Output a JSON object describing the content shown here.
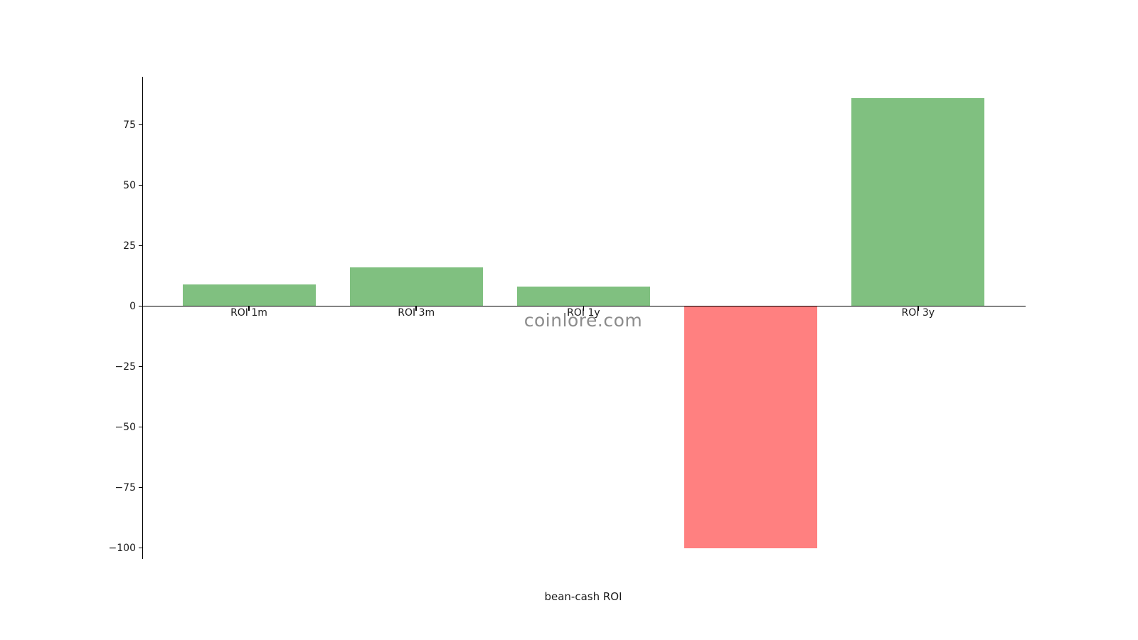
{
  "watermark": {
    "text": "coinlore.com",
    "color": "#8c8c8c"
  },
  "chart_data": {
    "type": "bar",
    "title": "",
    "xlabel": "bean-cash ROI",
    "ylabel": "",
    "categories": [
      "ROI 1m",
      "ROI 3m",
      "ROI 1y",
      "",
      "ROI 3y"
    ],
    "series": [
      {
        "name": "ROI",
        "values": [
          9,
          16,
          8,
          -100,
          86
        ]
      }
    ],
    "bar_colors": [
      "#80c080",
      "#80c080",
      "#80c080",
      "#ff8080",
      "#80c080"
    ],
    "positive_color": "#80c080",
    "negative_color": "#ff8080",
    "ytick_labels": [
      "75",
      "50",
      "25",
      "0",
      "−25",
      "−50",
      "−75",
      "−100"
    ],
    "ytick_values": [
      75,
      50,
      25,
      0,
      -25,
      -50,
      -75,
      -100
    ],
    "ylim": [
      -104.5,
      95
    ],
    "grid": false,
    "legend": "none",
    "axis_color": "#000000",
    "text_color": "#1a1a1a",
    "note": ""
  }
}
